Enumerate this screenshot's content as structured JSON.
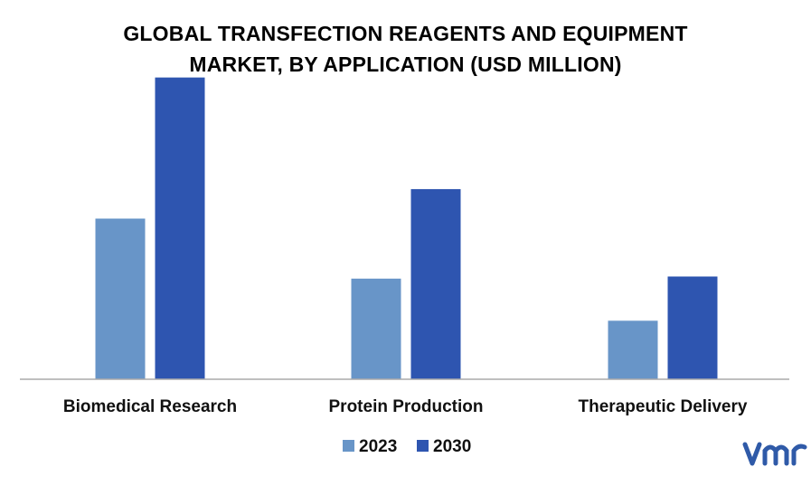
{
  "chart_data": {
    "type": "bar",
    "title_line1": "GLOBAL TRANSFECTION REAGENTS AND EQUIPMENT",
    "title_line2": "MARKET, BY APPLICATION (USD MILLION)",
    "categories": [
      "Biomedical Research",
      "Protein Production",
      "Therapeutic Delivery"
    ],
    "series": [
      {
        "name": "2023",
        "values": [
          153,
          96,
          56
        ],
        "color": "#6895c8"
      },
      {
        "name": "2030",
        "values": [
          287,
          181,
          98
        ],
        "color": "#2e55b0"
      }
    ],
    "ylim": [
      0,
      300
    ],
    "grid": false,
    "legend_position": "bottom-center"
  },
  "logo": {
    "text": "vmr",
    "color": "#2f5aa8"
  }
}
